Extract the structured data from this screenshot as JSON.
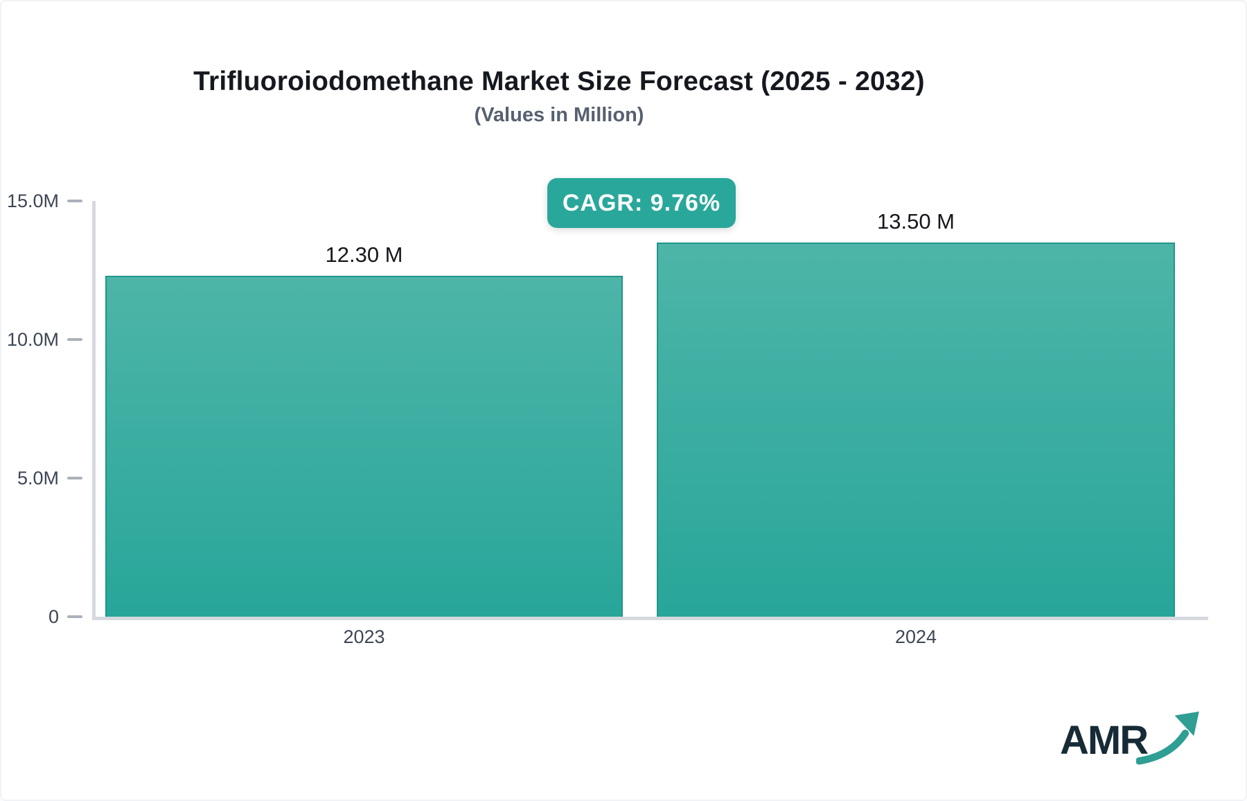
{
  "page": {
    "logo_text": "AMR"
  },
  "colors": {
    "title_text": "#15181e",
    "subtitle_text": "#566070",
    "axis_text": "#3d4654",
    "axis_line": "#d6d9de",
    "tick": "#abb1ba",
    "badge_bg": "#2aa79b",
    "bar_top": "#4db5a8",
    "bar_bottom": "#28a699",
    "bar_edge": "#21968a",
    "logo_text": "#162b36",
    "logo_arrow": "#2f9e93"
  },
  "chart_data": {
    "type": "bar",
    "title": "Trifluoroiodomethane Market Size Forecast (2025 - 2032)",
    "subtitle": "(Values in Million)",
    "annotation": "CAGR: 9.76%",
    "categories": [
      "2023",
      "2024"
    ],
    "values": [
      12.3,
      13.5
    ],
    "value_labels": [
      "12.30 M",
      "13.50 M"
    ],
    "unit": "Million",
    "xlabel": "",
    "ylabel": "",
    "ylim": [
      0,
      15
    ],
    "yticks": [
      {
        "value": 0,
        "label": "0"
      },
      {
        "value": 5,
        "label": "5.0M"
      },
      {
        "value": 10,
        "label": "10.0M"
      },
      {
        "value": 15,
        "label": "15.0M"
      }
    ],
    "grid": false,
    "legend": false,
    "bar_color_gradient": [
      "#4db5a8",
      "#28a699"
    ]
  }
}
